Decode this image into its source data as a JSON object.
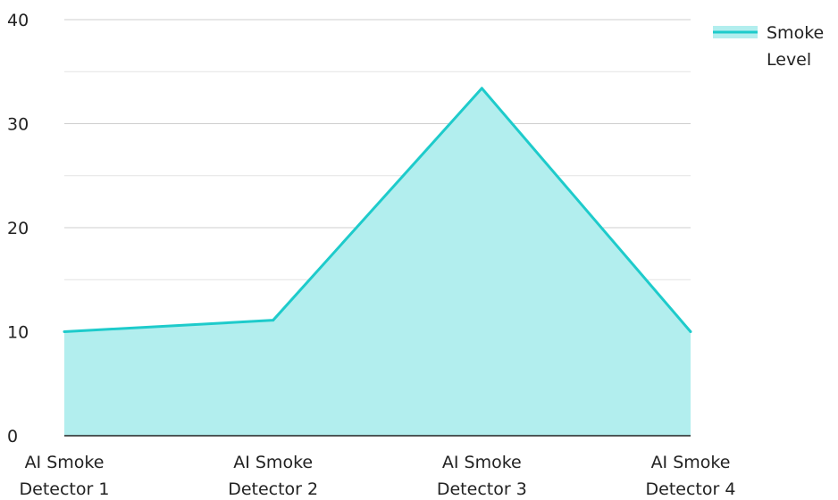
{
  "chart_data": {
    "type": "area",
    "title": "",
    "xlabel": "",
    "ylabel": "",
    "categories": [
      [
        "AI Smoke",
        "Detector 1"
      ],
      [
        "AI Smoke",
        "Detector 2"
      ],
      [
        "AI Smoke",
        "Detector 3"
      ],
      [
        "AI Smoke",
        "Detector 4"
      ]
    ],
    "series": [
      {
        "name": [
          "Smoke",
          "Level"
        ],
        "values": [
          10,
          11.1,
          33.4,
          10
        ],
        "color": "#1ECBCB",
        "fill": "#B2EEEE"
      }
    ],
    "ylim": [
      0,
      40
    ],
    "yticks": [
      "0",
      "10",
      "20",
      "30",
      "40"
    ],
    "grid": true,
    "legend": "top-right"
  }
}
